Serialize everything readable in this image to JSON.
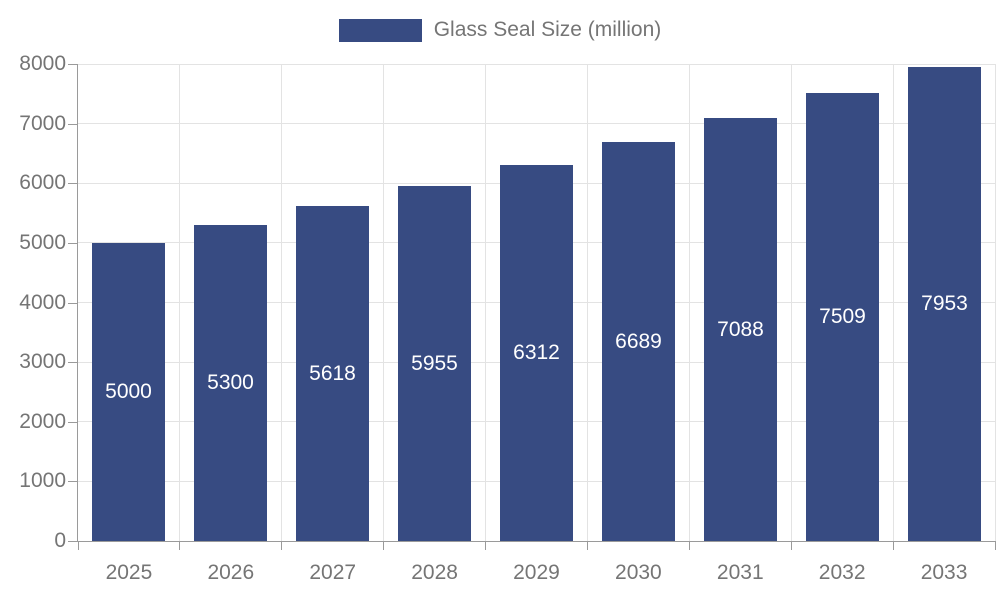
{
  "legend": {
    "label": "Glass Seal Size (million)"
  },
  "colors": {
    "bar": "#374b82",
    "grid": "#e3e3e3",
    "axis": "#9a9a9a",
    "text": "#757575",
    "value_label": "#ffffff"
  },
  "chart_data": {
    "type": "bar",
    "title": "",
    "categories": [
      "2025",
      "2026",
      "2027",
      "2028",
      "2029",
      "2030",
      "2031",
      "2032",
      "2033"
    ],
    "values": [
      5000,
      5300,
      5618,
      5955,
      6312,
      6689,
      7088,
      7509,
      7953
    ],
    "series": [
      {
        "name": "Glass Seal Size (million)",
        "values": [
          5000,
          5300,
          5618,
          5955,
          6312,
          6689,
          7088,
          7509,
          7953
        ]
      }
    ],
    "xlabel": "",
    "ylabel": "",
    "ylim": [
      0,
      8000
    ],
    "ytick_step": 1000,
    "yticks": [
      0,
      1000,
      2000,
      3000,
      4000,
      5000,
      6000,
      7000,
      8000
    ],
    "grid": true,
    "legend_position": "top",
    "value_labels": "inside-center"
  }
}
